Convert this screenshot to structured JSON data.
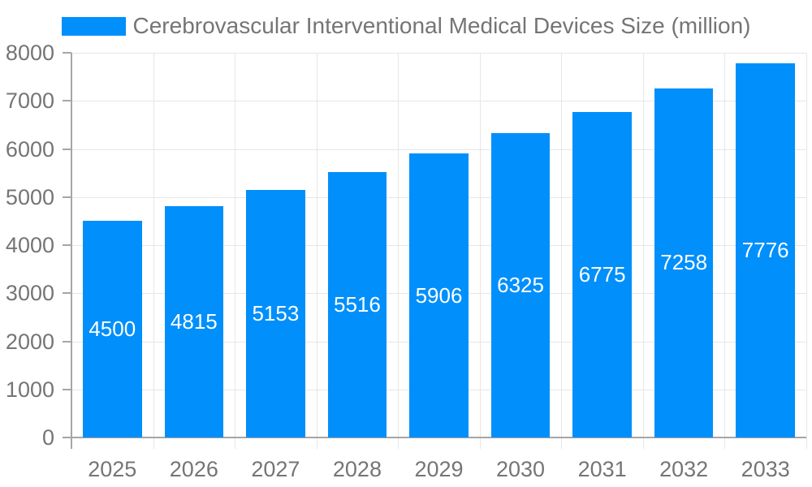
{
  "legend": {
    "position": "top"
  },
  "colors": {
    "bar": "#008ffb",
    "bar_label": "#ffffff",
    "axis_label": "#757575",
    "legend_label": "#757575",
    "gridline": "#e6e6e6",
    "axis_line": "#a6a6a6"
  },
  "chart_data": {
    "type": "bar",
    "series_name": "Cerebrovascular Interventional Medical Devices Size (million)",
    "categories": [
      "2025",
      "2026",
      "2027",
      "2028",
      "2029",
      "2030",
      "2031",
      "2032",
      "2033"
    ],
    "values": [
      4500,
      4815,
      5153,
      5516,
      5906,
      6325,
      6775,
      7258,
      7776
    ],
    "data_labels_visible": true,
    "title": "",
    "xlabel": "",
    "ylabel": "",
    "ylim": [
      0,
      8000
    ],
    "ytick_step": 1000,
    "yticks": [
      0,
      1000,
      2000,
      3000,
      4000,
      5000,
      6000,
      7000,
      8000
    ],
    "grid": "on",
    "legend_position": "top"
  }
}
